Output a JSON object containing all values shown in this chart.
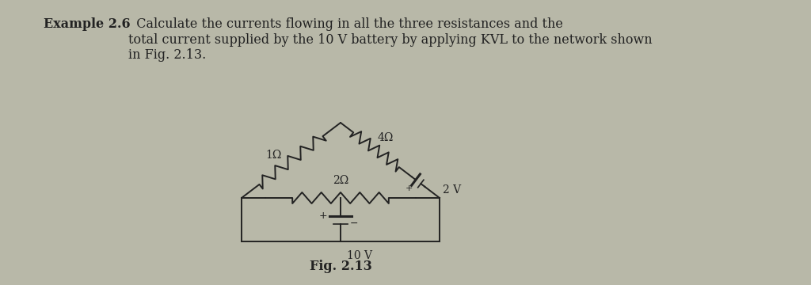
{
  "title_bold": "Example 2.6",
  "title_text": "  Calculate the currents flowing in all the three resistances and the\ntotal current supplied by the 10 V battery by applying KVL to the network shown\nin Fig. 2.13.",
  "fig_label": "Fig. 2.13",
  "background_color": "#b8b8a8",
  "text_color": "#111111",
  "circuit": {
    "R1_label": "1Ω",
    "R2_label": "2Ω",
    "R3_label": "4Ω",
    "V1_label": "10 V",
    "V2_label": "2 V"
  }
}
